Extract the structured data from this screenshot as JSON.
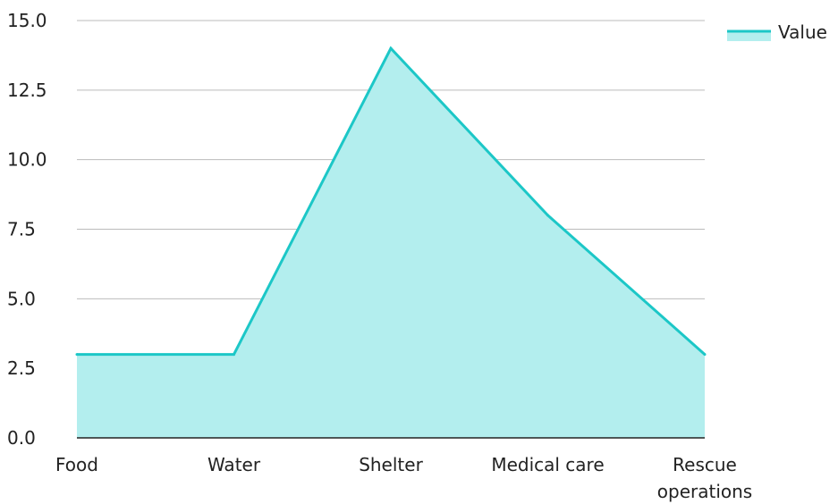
{
  "chart_data": {
    "type": "area",
    "categories": [
      "Food",
      "Water",
      "Shelter",
      "Medical care",
      "Rescue operations"
    ],
    "category_lines": [
      [
        "Food"
      ],
      [
        "Water"
      ],
      [
        "Shelter"
      ],
      [
        "Medical care"
      ],
      [
        "Rescue",
        "operations"
      ]
    ],
    "series": [
      {
        "name": "Value",
        "values": [
          3,
          3,
          14,
          8,
          3
        ]
      }
    ],
    "ylim": [
      0,
      15
    ],
    "yticks": [
      0,
      2.5,
      5,
      7.5,
      10,
      12.5,
      15
    ],
    "ytick_labels": [
      "0.0",
      "2.5",
      "5.0",
      "7.5",
      "10.0",
      "12.5",
      "15.0"
    ],
    "grid": true,
    "legend_position": "top-right",
    "colors": {
      "line": "#1cc7c7",
      "fill": "#b3eeee",
      "grid": "#bbbbbb",
      "axis": "#222222"
    }
  }
}
